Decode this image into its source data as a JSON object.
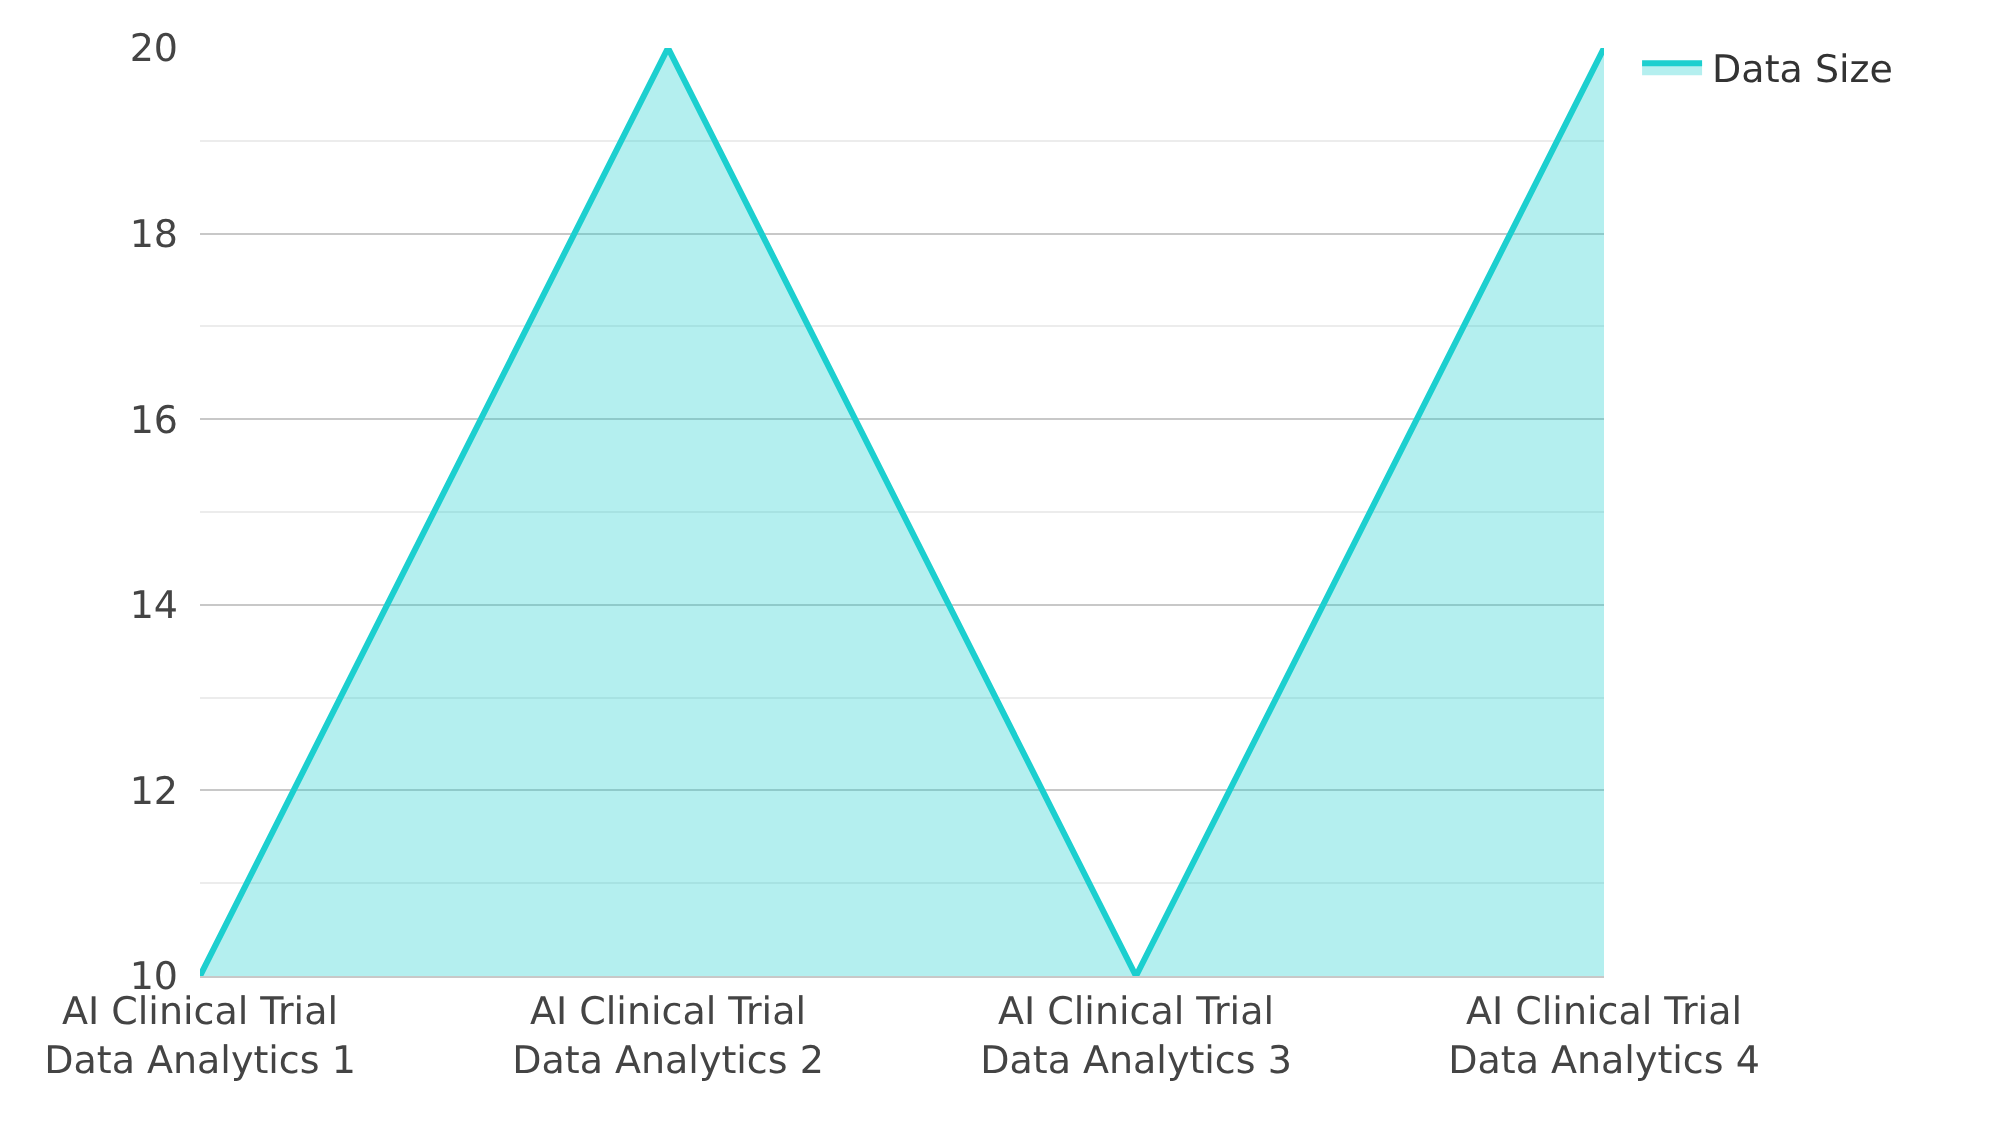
{
  "chart_data": {
    "type": "area",
    "categories": [
      "AI Clinical Trial Data Analytics 1",
      "AI Clinical Trial Data Analytics 2",
      "AI Clinical Trial Data Analytics 3",
      "AI Clinical Trial Data Analytics 4"
    ],
    "series": [
      {
        "name": "Data Size",
        "color": "#1ccfcf",
        "values": [
          10,
          20,
          10,
          20
        ]
      }
    ],
    "ylim": [
      10,
      20
    ],
    "yticks": [
      10,
      12,
      14,
      16,
      18,
      20
    ],
    "grid": "y",
    "legend": "top right",
    "marker": "none",
    "line_style": "solid"
  }
}
